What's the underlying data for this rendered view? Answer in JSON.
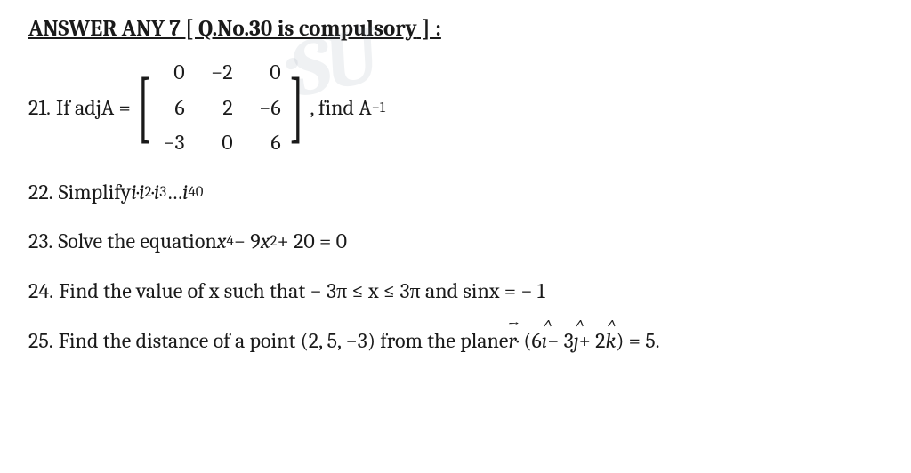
{
  "header": {
    "prefix": "ANSWER ANY 7 [ ",
    "qno": "Q.No.30 is compulsory",
    "suffix": " ] :"
  },
  "questions": {
    "q21": {
      "num": "21.",
      "lead": "If adjA = ",
      "matrix": {
        "r1c1": "0",
        "r1c2": "−2",
        "r1c3": "0",
        "r2c1": "6",
        "r2c2": "2",
        "r2c3": "−6",
        "r3c1": "−3",
        "r3c2": "0",
        "r3c3": "6"
      },
      "tail_pre": ", find A",
      "tail_sup": "−1"
    },
    "q22": {
      "num": "22.",
      "lead": "Simplify  ",
      "expr_i": "i",
      "dot": " · ",
      "expr_i2": "i",
      "sup2": "2",
      "expr_i3": "i",
      "sup3": "3",
      "dots": " … ",
      "expr_i40": "i",
      "sup40": "40"
    },
    "q23": {
      "num": "23.",
      "text_a": "Solve the equation ",
      "expr_x4": "x",
      "sup4": "4",
      "mid1": " − 9",
      "expr_x2": "x",
      "sup2": "2",
      "mid2": " + 20 = 0"
    },
    "q24": {
      "num": "24.",
      "text": "Find the value of x such that − 3π ≤ x ≤ 3π and sinx = − 1"
    },
    "q25": {
      "num": "25.",
      "text_a": "Find the distance of a point (2, 5, −3) from the plane ",
      "r": "r",
      "dot": " · (6",
      "i": "ı",
      "mid1": " − 3",
      "j": "ȷ",
      "mid2": " + 2",
      "k": "k",
      "tail": ") = 5."
    }
  },
  "styling": {
    "page_bg": "#ffffff",
    "text_color": "#1a1a1a",
    "header_fontsize": 25,
    "body_fontsize": 24,
    "matrix_fontsize": 24,
    "font_family": "Cambria, Georgia, serif",
    "watermark_color": "rgba(120,140,160,0.12)"
  }
}
